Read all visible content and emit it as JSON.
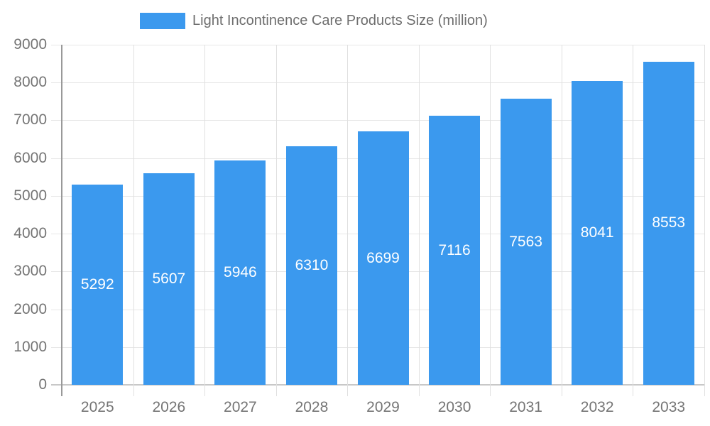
{
  "chart_data": {
    "type": "bar",
    "title": "Light Incontinence Care Products Size (million)",
    "series": [
      {
        "name": "Light Incontinence Care Products Size (million)",
        "values": [
          5292,
          5607,
          5946,
          6310,
          6699,
          7116,
          7563,
          8041,
          8553
        ]
      }
    ],
    "categories": [
      "2025",
      "2026",
      "2027",
      "2028",
      "2029",
      "2030",
      "2031",
      "2032",
      "2033"
    ],
    "xlabel": "",
    "ylabel": "",
    "ylim": [
      0,
      9000
    ],
    "y_ticks": [
      0,
      1000,
      2000,
      3000,
      4000,
      5000,
      6000,
      7000,
      8000,
      9000
    ],
    "grid": "horizontal gridlines every 1000 plus vertical category separators",
    "legend_position": "top",
    "bar_labels_inside": true,
    "colors": {
      "bar": "#3B99EE",
      "bar_value_text": "#ffffff",
      "axis_line_y": "#999999",
      "axis_line_x": "#c8c8c8",
      "gridline": "#e6e6e6",
      "axis_text": "#757575",
      "legend_text": "#6e6e6e"
    }
  }
}
